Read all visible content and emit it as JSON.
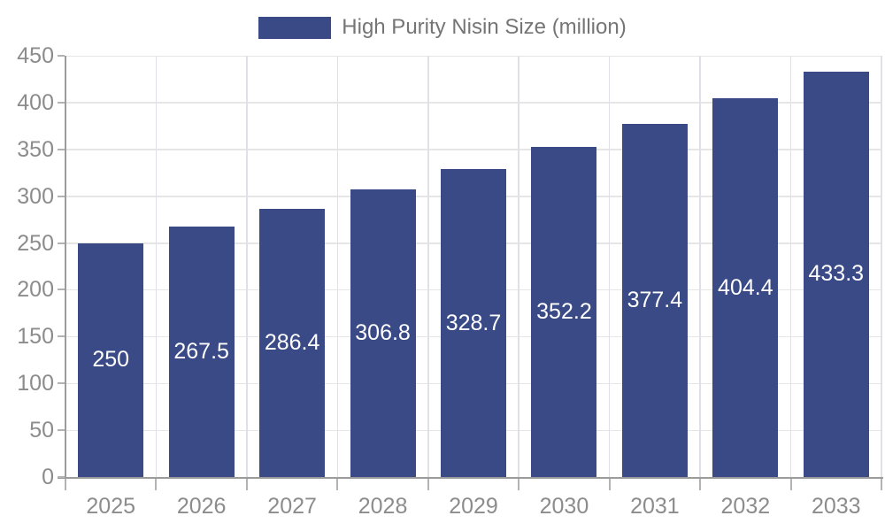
{
  "legend": {
    "label": "High Purity Nisin Size (million)"
  },
  "chart_data": {
    "type": "bar",
    "title": "High Purity Nisin Size (million)",
    "categories": [
      "2025",
      "2026",
      "2027",
      "2028",
      "2029",
      "2030",
      "2031",
      "2032",
      "2033"
    ],
    "values": [
      250,
      267.5,
      286.4,
      306.8,
      328.7,
      352.2,
      377.4,
      404.4,
      433.3
    ],
    "value_labels": [
      "250",
      "267.5",
      "286.4",
      "306.8",
      "328.7",
      "352.2",
      "377.4",
      "404.4",
      "433.3"
    ],
    "xlabel": "",
    "ylabel": "",
    "ylim": [
      0,
      450
    ],
    "yticks": [
      0,
      50,
      100,
      150,
      200,
      250,
      300,
      350,
      400,
      450
    ],
    "grid": true,
    "legend_position": "top-center",
    "colors": {
      "bar": "#394A87",
      "value_label": "#ffffff",
      "legend_text": "#757575",
      "axis_label": "#8c8c8c",
      "axis_line": "#9b9b9b",
      "tick_mark": "#b3b3b3",
      "gridline_h": "#e6e6e6",
      "gridline_v": "#e0e0e8",
      "background": "#ffffff"
    }
  }
}
